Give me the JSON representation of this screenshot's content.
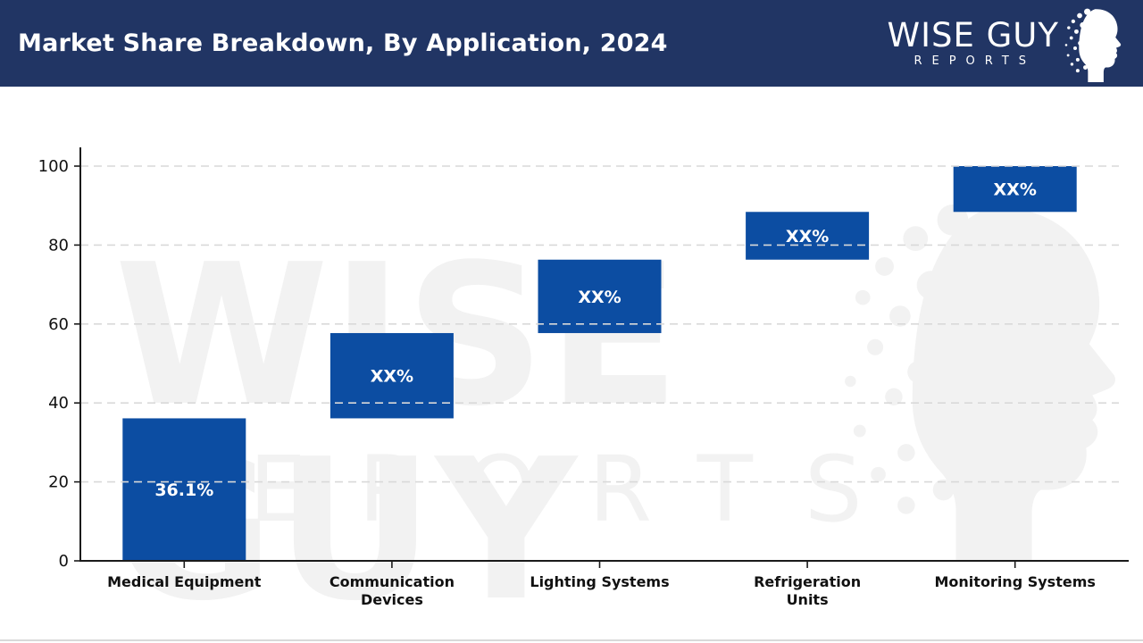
{
  "header": {
    "title": "Market Share Breakdown, By Application, 2024",
    "bg_color": "#213564",
    "logo": {
      "line1": "WISE GUY",
      "line2": "REPORTS"
    }
  },
  "watermark": {
    "line1": "WISE GUY",
    "line2": "REPORTS"
  },
  "chart_data": {
    "type": "bar",
    "subtype": "waterfall",
    "title": "Market Share Breakdown, By Application, 2024",
    "categories": [
      "Medical Equipment",
      "Communication Devices",
      "Lighting Systems",
      "Refrigeration Units",
      "Monitoring Systems"
    ],
    "segments": [
      {
        "category_lines": [
          "Medical Equipment"
        ],
        "start": 0,
        "end": 36.1,
        "label": "36.1%"
      },
      {
        "category_lines": [
          "Communication",
          "Devices"
        ],
        "start": 36.1,
        "end": 57.7,
        "label": "XX%"
      },
      {
        "category_lines": [
          "Lighting Systems"
        ],
        "start": 57.7,
        "end": 76.3,
        "label": "XX%"
      },
      {
        "category_lines": [
          "Refrigeration",
          "Units"
        ],
        "start": 76.3,
        "end": 88.4,
        "label": "XX%"
      },
      {
        "category_lines": [
          "Monitoring Systems"
        ],
        "start": 88.4,
        "end": 100.0,
        "label": "XX%"
      }
    ],
    "yticks": [
      0,
      20,
      40,
      60,
      80,
      100
    ],
    "ylim": [
      0,
      100
    ],
    "xlabel": "",
    "ylabel": "",
    "grid": "horizontal-dashed",
    "legend": "none",
    "colors": {
      "bar": "#0c4da2",
      "bar_label": "#ffffff",
      "grid": "#d9d9d9",
      "axis": "#1a1a1a",
      "tick_label": "#111111"
    }
  }
}
